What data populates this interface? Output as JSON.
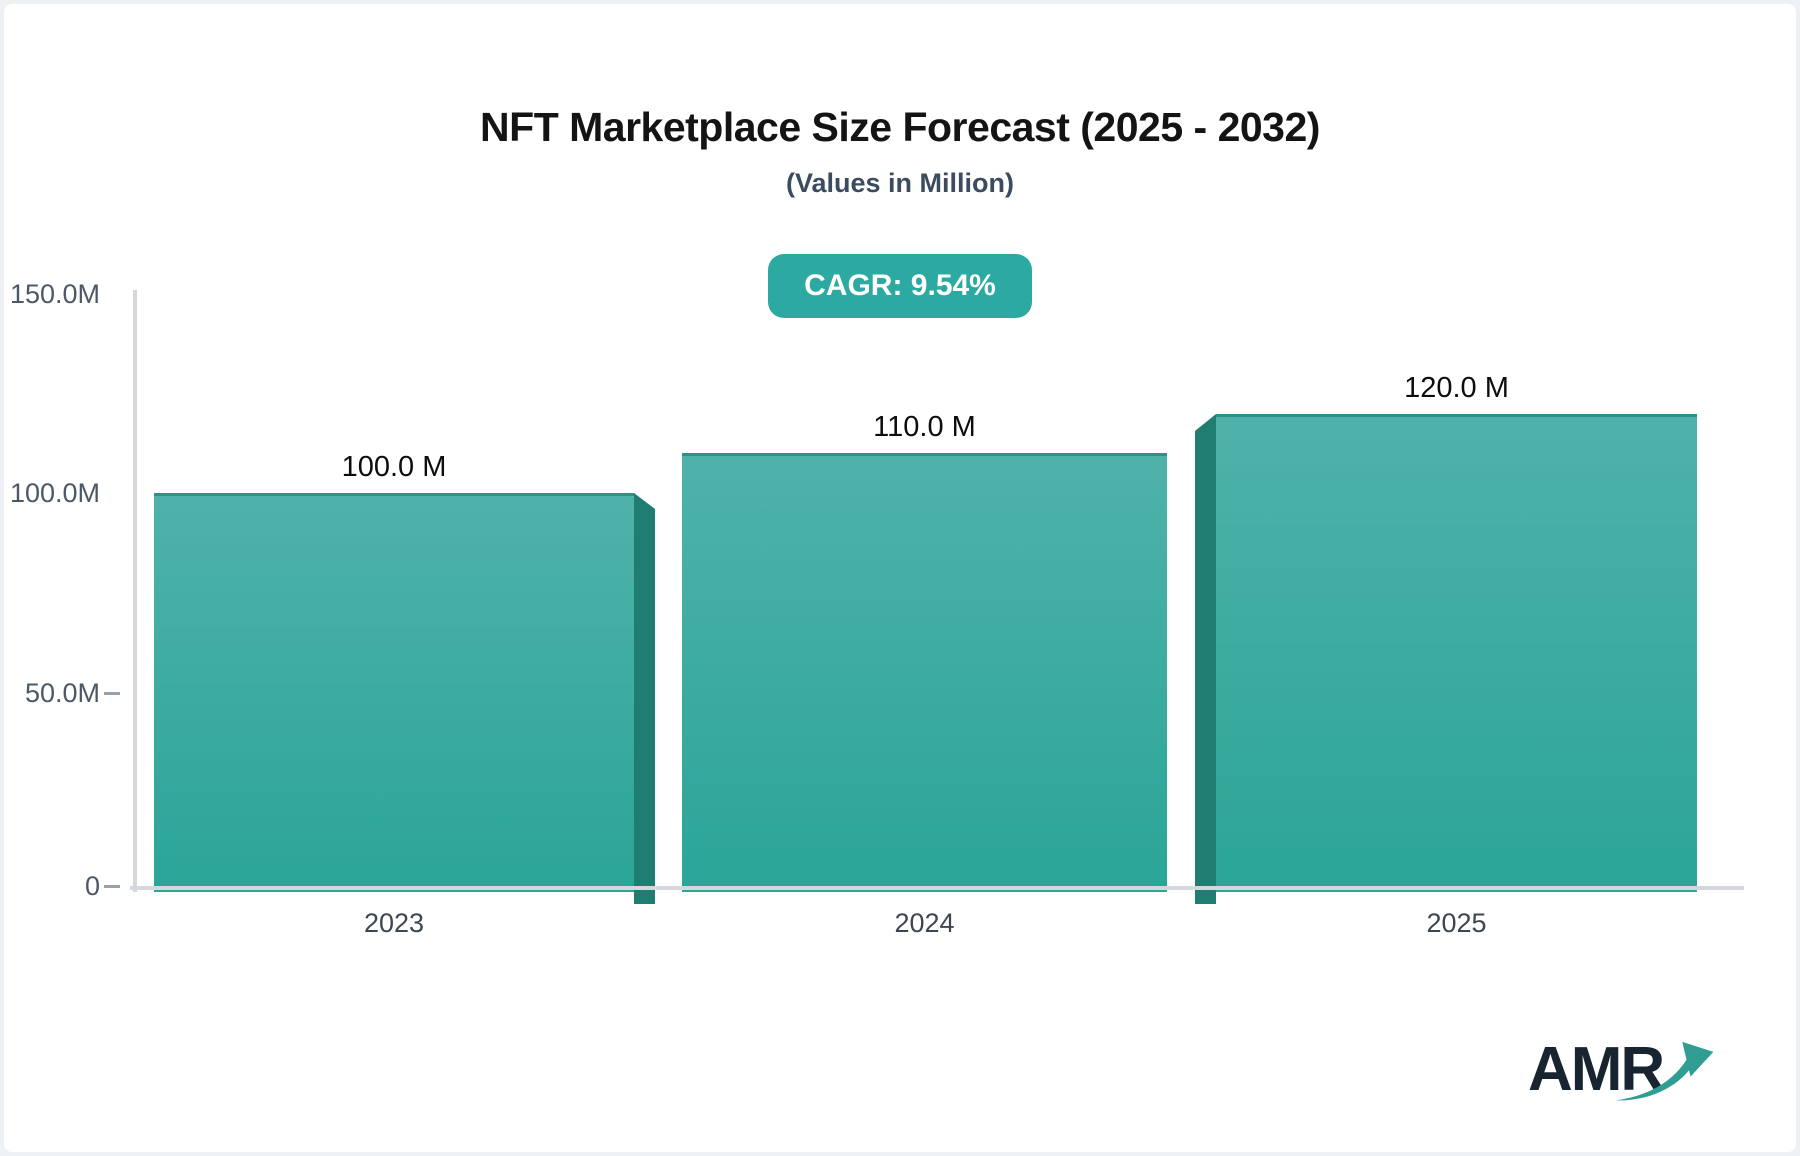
{
  "header": {
    "title": "NFT Marketplace Size Forecast (2025 - 2032)",
    "subtitle": "(Values in Million)",
    "cagr_badge": "CAGR: 9.54%"
  },
  "chart_data": {
    "type": "bar",
    "title": "NFT Marketplace Size Forecast (2025 - 2032)",
    "subtitle": "(Values in Million)",
    "cagr_percent": "9.54%",
    "categories": [
      "2023",
      "2024",
      "2025"
    ],
    "values": [
      100.0,
      110.0,
      120.0
    ],
    "value_labels": [
      "100.0 M",
      "110.0 M",
      "120.0 M"
    ],
    "unit": "Million",
    "ylim": [
      0,
      150
    ],
    "yticks": [
      {
        "label": "150.0M",
        "value": 150
      },
      {
        "label": "100.0M",
        "value": 100
      },
      {
        "label": "50.0M",
        "value": 50
      },
      {
        "label": "0",
        "value": 0
      }
    ],
    "grid": false,
    "legend": false
  },
  "logo": {
    "text": "AMR"
  },
  "colors": {
    "bar_top": "#4fb2a9",
    "bar_bottom": "#2aa597",
    "bar_edge": "#2e9087",
    "bar_side": "#1f7d72",
    "badge_bg": "#2caaa2",
    "badge_text": "#ffffff",
    "axis_line": "#d4d7dc",
    "tick_text": "#4d5866",
    "category_text": "#3d4653",
    "value_text": "#0d0d0d",
    "title_text": "#141414",
    "subtitle_text": "#3c4b5d",
    "logo_text": "#18242f",
    "logo_arrow": "#2f9d92"
  }
}
